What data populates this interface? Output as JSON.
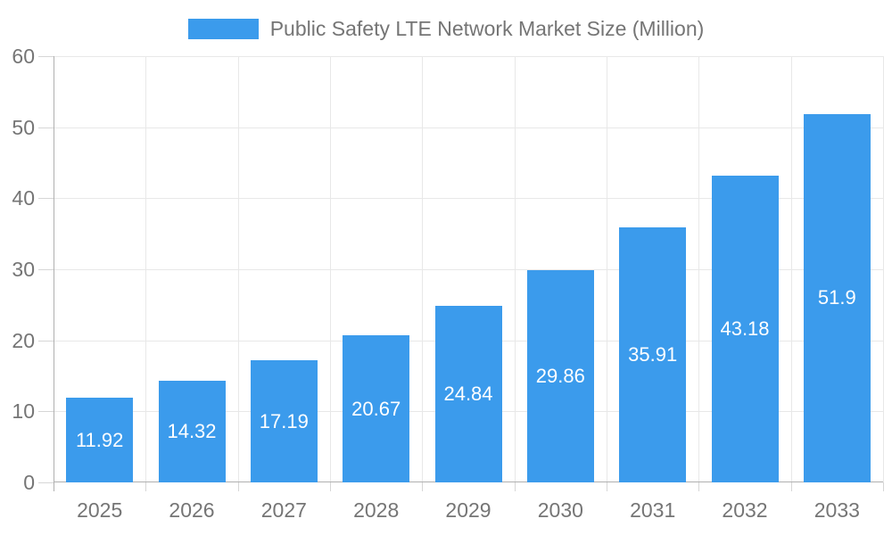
{
  "chart_data": {
    "type": "bar",
    "title": "Public Safety LTE Network Market Size (Million)",
    "categories": [
      "2025",
      "2026",
      "2027",
      "2028",
      "2029",
      "2030",
      "2031",
      "2032",
      "2033"
    ],
    "values": [
      11.92,
      14.32,
      17.19,
      20.67,
      24.84,
      29.86,
      35.91,
      43.18,
      51.9
    ],
    "value_labels": [
      "11.92",
      "14.32",
      "17.19",
      "20.67",
      "24.84",
      "29.86",
      "35.91",
      "43.18",
      "51.9"
    ],
    "xlabel": "",
    "ylabel": "",
    "ylim": [
      0,
      60
    ],
    "yticks": [
      0,
      10,
      20,
      30,
      40,
      50,
      60
    ],
    "grid": true,
    "legend_position": "top",
    "colors": {
      "bar": "#3b9bec",
      "value_label": "#ffffff",
      "axis_text": "#757575",
      "legend_text": "#757575",
      "grid_line": "#e8e8e8",
      "axis_line": "#b0b0b0",
      "tick_line": "#d6d6d6",
      "background": "#ffffff"
    }
  }
}
